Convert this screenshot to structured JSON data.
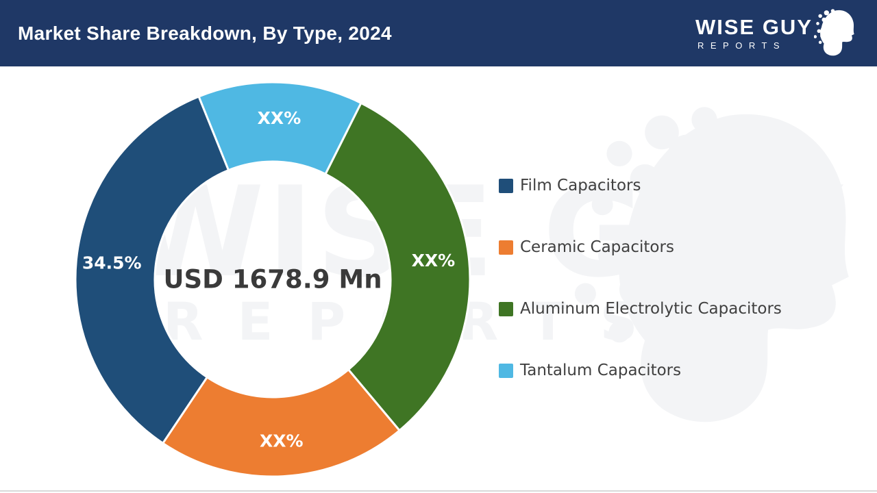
{
  "header": {
    "title": "Market Share Breakdown, By Type, 2024",
    "logo": {
      "brand": "WISE GUY",
      "sub": "REPORTS"
    }
  },
  "chart_data": {
    "type": "pie",
    "subtype": "donut",
    "title": "Market Share Breakdown, By Type, 2024",
    "center_label": "USD 1678.9 Mn",
    "legend_position": "right",
    "start_angle_deg": 112,
    "segments": [
      {
        "label": "Film Capacitors",
        "display_pct": "34.5%",
        "share_pct": 34.5,
        "color": "#1f4e79"
      },
      {
        "label": "Ceramic Capacitors",
        "display_pct": "XX%",
        "share_pct": 20.5,
        "color": "#ed7d31"
      },
      {
        "label": "Aluminum Electrolytic Capacitors",
        "display_pct": "XX%",
        "share_pct": 31.5,
        "color": "#3f7524"
      },
      {
        "label": "Tantalum Capacitors",
        "display_pct": "XX%",
        "share_pct": 13.5,
        "color": "#4fb8e3"
      }
    ]
  },
  "watermark": {
    "line1": "WISE GUY",
    "line2": "REPORTS"
  },
  "colors": {
    "header_bg": "#1f3866",
    "title_text": "#ffffff",
    "center_text": "#3a3a3a",
    "legend_text": "#404040",
    "watermark": "#f3f4f6",
    "bottom_border": "#d9d9d9"
  }
}
